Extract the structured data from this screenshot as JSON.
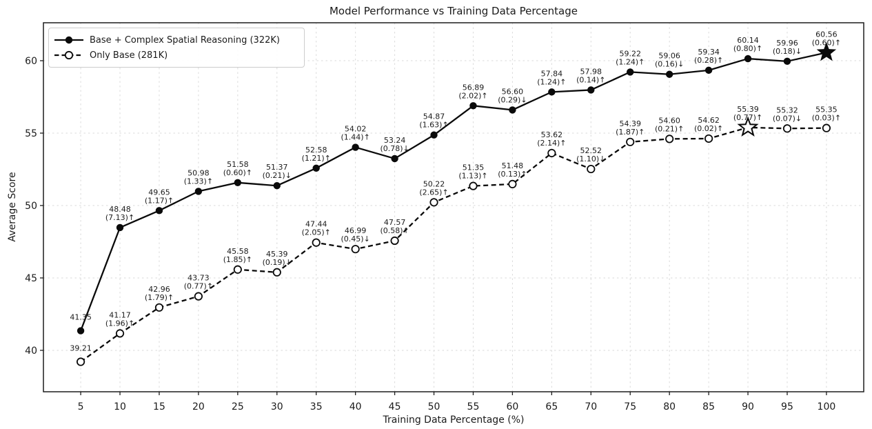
{
  "chart_data": {
    "type": "line",
    "title": "Model Performance vs Training Data Percentage",
    "xlabel": "Training Data Percentage (%)",
    "ylabel": "Average Score",
    "x": [
      5,
      10,
      15,
      20,
      25,
      30,
      35,
      40,
      45,
      50,
      55,
      60,
      65,
      70,
      75,
      80,
      85,
      90,
      95,
      100
    ],
    "xticks": [
      5,
      10,
      15,
      20,
      25,
      30,
      35,
      40,
      45,
      50,
      55,
      60,
      65,
      70,
      75,
      80,
      85,
      90,
      95,
      100
    ],
    "yticks": [
      40,
      45,
      50,
      55,
      60
    ],
    "xlim": [
      0.25,
      104.75
    ],
    "ylim": [
      37.14,
      62.62
    ],
    "grid": true,
    "grid_style": "dashed-light-gray",
    "legend_position": "upper left",
    "line_color": "#000000",
    "series": [
      {
        "name": "Base + Complex Spatial Reasoning (322K)",
        "line_style": "solid",
        "marker": "filled-circle",
        "star_at_x": 100,
        "star_style": "filled-star",
        "values": [
          41.35,
          48.48,
          49.65,
          50.98,
          51.58,
          51.37,
          52.58,
          54.02,
          53.24,
          54.87,
          56.89,
          56.6,
          57.84,
          57.98,
          59.22,
          59.06,
          59.34,
          60.14,
          59.96,
          60.56
        ],
        "deltas": [
          "",
          "(7.13)↑",
          "(1.17)↑",
          "(1.33)↑",
          "(0.60)↑",
          "(0.21)↓",
          "(1.21)↑",
          "(1.44)↑",
          "(0.78)↓",
          "(1.63)↑",
          "(2.02)↑",
          "(0.29)↓",
          "(1.24)↑",
          "(0.14)↑",
          "(1.24)↑",
          "(0.16)↓",
          "(0.28)↑",
          "(0.80)↑",
          "(0.18)↓",
          "(0.60)↑"
        ]
      },
      {
        "name": "Only Base (281K)",
        "line_style": "dashed",
        "marker": "open-circle",
        "star_at_x": 90,
        "star_style": "open-star",
        "values": [
          39.21,
          41.17,
          42.96,
          43.73,
          45.58,
          45.39,
          47.44,
          46.99,
          47.57,
          50.22,
          51.35,
          51.48,
          53.62,
          52.52,
          54.39,
          54.6,
          54.62,
          55.39,
          55.32,
          55.35
        ],
        "deltas": [
          "",
          "(1.96)↑",
          "(1.79)↑",
          "(0.77)↑",
          "(1.85)↑",
          "(0.19)↓",
          "(2.05)↑",
          "(0.45)↓",
          "(0.58)↑",
          "(2.65)↑",
          "(1.13)↑",
          "(0.13)↑",
          "(2.14)↑",
          "(1.10)↓",
          "(1.87)↑",
          "(0.21)↑",
          "(0.02)↑",
          "(0.77)↑",
          "(0.07)↓",
          "(0.03)↑"
        ]
      }
    ]
  }
}
